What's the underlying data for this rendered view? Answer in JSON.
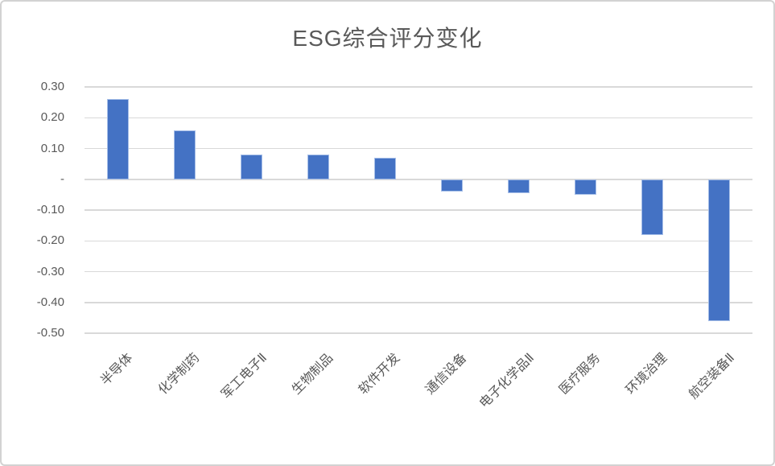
{
  "title": "ESG综合评分变化",
  "chart_data": {
    "type": "bar",
    "title": "ESG综合评分变化",
    "xlabel": "",
    "ylabel": "",
    "categories": [
      "半导体",
      "化学制药",
      "军工电子Ⅱ",
      "生物制品",
      "软件开发",
      "通信设备",
      "电子化学品Ⅱ",
      "医疗服务",
      "环境治理",
      "航空装备Ⅱ"
    ],
    "values": [
      0.26,
      0.16,
      0.08,
      0.08,
      0.07,
      -0.04,
      -0.045,
      -0.05,
      -0.18,
      -0.46
    ],
    "ylim": [
      -0.5,
      0.3
    ],
    "grid": true,
    "legend": false,
    "yticks": [
      {
        "label": "0.30",
        "value": 0.3
      },
      {
        "label": "0.20",
        "value": 0.2
      },
      {
        "label": "0.10",
        "value": 0.1
      },
      {
        "label": "-",
        "value": 0
      },
      {
        "label": "-0.10",
        "value": -0.1
      },
      {
        "label": "-0.20",
        "value": -0.2
      },
      {
        "label": "-0.30",
        "value": -0.3
      },
      {
        "label": "-0.40",
        "value": -0.4
      },
      {
        "label": "-0.50",
        "value": -0.5
      }
    ],
    "colors": {
      "bar_fill": "#4472C4",
      "bar_border": "#a7bfe8",
      "gridline": "#d9d9d9",
      "text": "#595959",
      "frame_border": "#d2d2d2",
      "background": "#ffffff"
    }
  }
}
